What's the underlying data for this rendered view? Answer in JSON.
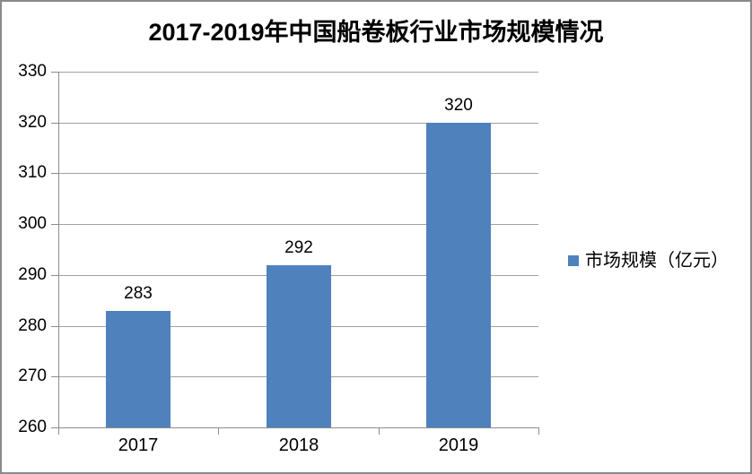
{
  "chart_data": {
    "type": "bar",
    "title": "2017-2019年中国船卷板行业市场规模情况",
    "categories": [
      "2017",
      "2018",
      "2019"
    ],
    "values": [
      283,
      292,
      320
    ],
    "data_labels": [
      "283",
      "292",
      "320"
    ],
    "series": [
      {
        "name": "市场规模（亿元）",
        "values": [
          283,
          292,
          320
        ]
      }
    ],
    "legend_label": "市场规模（亿元）",
    "legend_position": "right",
    "xlabel": "",
    "ylabel": "",
    "ylim": [
      260,
      330
    ],
    "ytick_step": 10,
    "yticks": [
      260,
      270,
      280,
      290,
      300,
      310,
      320,
      330
    ],
    "grid": true
  },
  "colors": {
    "bar": "#4f81bd",
    "gridline": "#a0a0a0",
    "axis": "#8c8c8c",
    "frame_border": "#8a8a8a",
    "text": "#000000",
    "background": "#ffffff"
  }
}
